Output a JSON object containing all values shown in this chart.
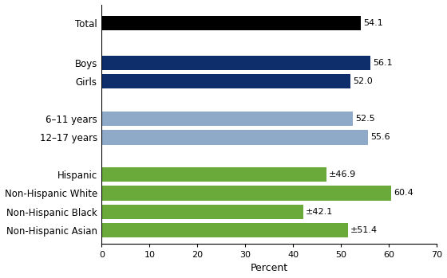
{
  "categories": [
    "Total",
    "Boys",
    "Girls",
    "6–11 years",
    "12–17 years",
    "Hispanic",
    "Non-Hispanic White",
    "Non-Hispanic Black",
    "Non-Hispanic Asian"
  ],
  "values": [
    54.1,
    56.1,
    52.0,
    52.5,
    55.6,
    46.9,
    60.4,
    42.1,
    51.4
  ],
  "labels": [
    "54.1",
    "56.1",
    "52.0",
    "52.5",
    "55.6",
    "±46.9",
    "60.4",
    "±42.1",
    "±51.4"
  ],
  "bar_colors": [
    "#000000",
    "#0d2d6b",
    "#0d2d6b",
    "#8fa9c8",
    "#8fa9c8",
    "#6aaa3a",
    "#6aaa3a",
    "#6aaa3a",
    "#6aaa3a"
  ],
  "xlabel": "Percent",
  "xlim": [
    0,
    70
  ],
  "xticks": [
    0,
    10,
    20,
    30,
    40,
    50,
    60,
    70
  ],
  "background_color": "#ffffff",
  "label_fontsize": 8.0,
  "ytick_fontsize": 8.5,
  "axis_label_fontsize": 9.0,
  "bar_height": 0.55
}
